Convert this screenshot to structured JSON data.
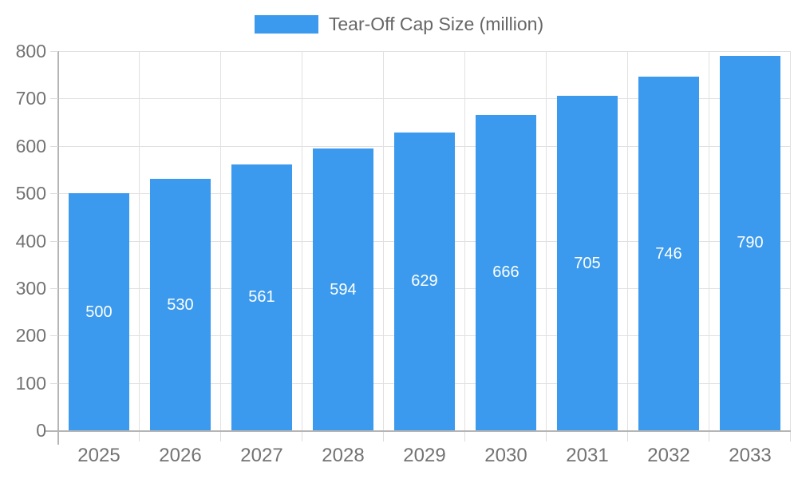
{
  "chart_data": {
    "type": "bar",
    "title": "",
    "legend": "Tear-Off Cap Size (million)",
    "legend_position": "top",
    "categories": [
      "2025",
      "2026",
      "2027",
      "2028",
      "2029",
      "2030",
      "2031",
      "2032",
      "2033"
    ],
    "values": [
      500,
      530,
      561,
      594,
      629,
      666,
      705,
      746,
      790
    ],
    "value_labels": [
      "500",
      "530",
      "561",
      "594",
      "629",
      "666",
      "705",
      "746",
      "790"
    ],
    "xlabel": "",
    "ylabel": "",
    "ylim": [
      0,
      800
    ],
    "yticks": [
      0,
      100,
      200,
      300,
      400,
      500,
      600,
      700,
      800
    ],
    "grid": "horizontal-and-vertical",
    "colors": {
      "bar": "#3B9AED",
      "grid": "#E1E1E1",
      "axis": "#B5B5B5",
      "tick_mark": "#DCDCDC",
      "tick_text": "#737373",
      "legend_text": "#666666",
      "value_label": "#FFFFFF",
      "background": "#FFFFFF"
    }
  }
}
